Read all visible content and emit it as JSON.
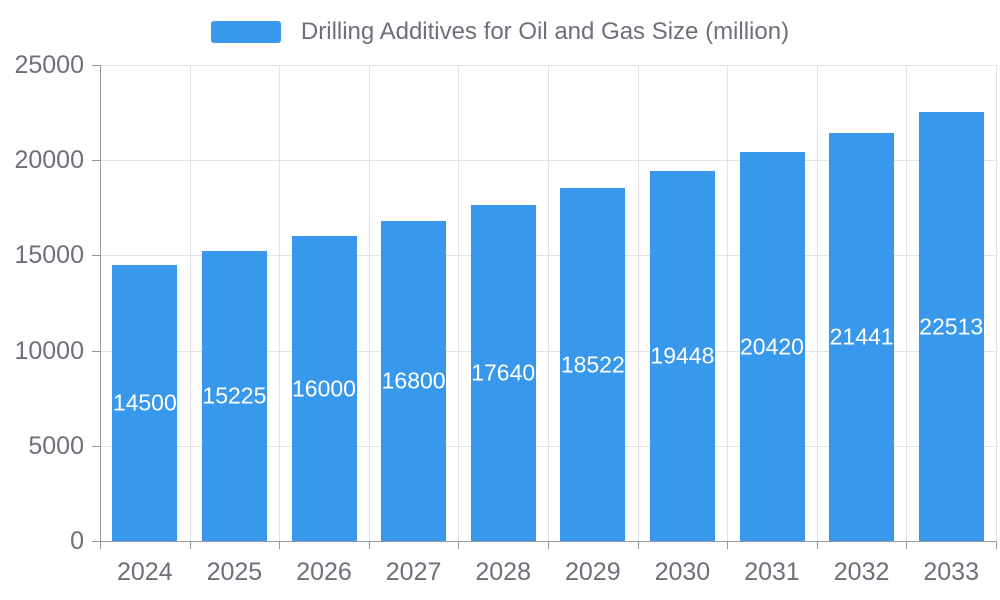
{
  "legend": {
    "label": "Drilling Additives for Oil and Gas Size (million)"
  },
  "chart_data": {
    "type": "bar",
    "title": "Drilling Additives for Oil and Gas Size (million)",
    "series_name": "Drilling Additives for Oil and Gas Size (million)",
    "categories": [
      "2024",
      "2025",
      "2026",
      "2027",
      "2028",
      "2029",
      "2030",
      "2031",
      "2032",
      "2033"
    ],
    "values": [
      14500,
      15225,
      16000,
      16800,
      17640,
      18522,
      19448,
      20420,
      21441,
      22513
    ],
    "xlabel": "",
    "ylabel": "",
    "ylim": [
      0,
      25000
    ],
    "y_ticks": [
      0,
      5000,
      10000,
      15000,
      20000,
      25000
    ],
    "grid": true,
    "legend_position": "top-center",
    "bar_color": "#3898EC",
    "bar_label_color": "#FFFFFF",
    "axis_label_color": "#6E7079",
    "axis_line_color": "#97989D",
    "grid_line_color": "#E0E3E9"
  }
}
